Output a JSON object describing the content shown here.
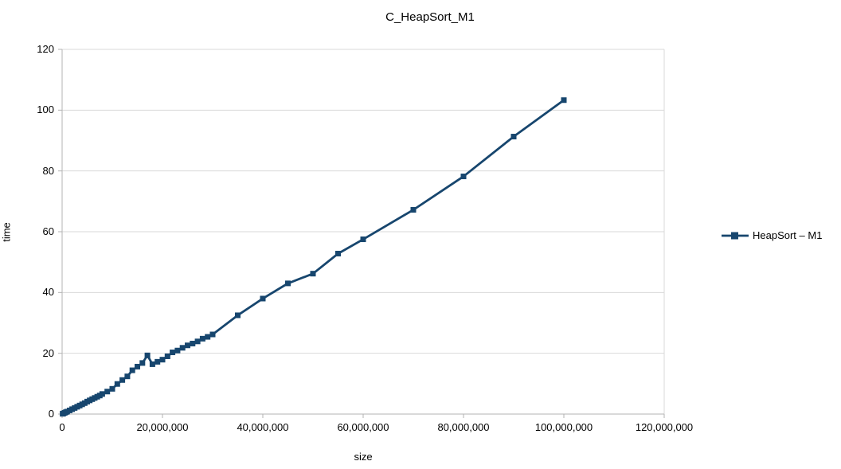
{
  "chart_data": {
    "type": "line",
    "title": "C_HeapSort_M1",
    "xlabel": "size",
    "ylabel": "time",
    "xlim": [
      0,
      120000000
    ],
    "ylim": [
      0,
      120
    ],
    "x_ticks": [
      0,
      20000000,
      40000000,
      60000000,
      80000000,
      100000000,
      120000000
    ],
    "x_tick_labels": [
      "0",
      "20,000,000",
      "40,000,000",
      "60,000,000",
      "80,000,000",
      "100,000,000",
      "120,000,000"
    ],
    "y_ticks": [
      0,
      20,
      40,
      60,
      80,
      100,
      120
    ],
    "y_tick_labels": [
      "0",
      "20",
      "40",
      "60",
      "80",
      "100",
      "120"
    ],
    "grid": "horizontal",
    "legend_position": "right",
    "series": [
      {
        "name": "HeapSort – M1",
        "color": "#17466E",
        "marker": "square",
        "x": [
          100000,
          250000,
          500000,
          750000,
          1000000,
          1500000,
          2000000,
          2500000,
          3000000,
          3500000,
          4000000,
          4500000,
          5000000,
          5500000,
          6000000,
          6500000,
          7000000,
          7500000,
          8000000,
          9000000,
          10000000,
          11000000,
          12000000,
          13000000,
          14000000,
          15000000,
          16000000,
          17000000,
          18000000,
          19000000,
          20000000,
          21000000,
          22000000,
          23000000,
          24000000,
          25000000,
          26000000,
          27000000,
          28000000,
          29000000,
          30000000,
          35000000,
          40000000,
          45000000,
          50000000,
          55000000,
          60000000,
          70000000,
          80000000,
          90000000,
          100000000
        ],
        "y": [
          0.1,
          0.2,
          0.4,
          0.6,
          0.8,
          1.2,
          1.6,
          2.0,
          2.4,
          2.8,
          3.2,
          3.6,
          4.1,
          4.5,
          4.9,
          5.3,
          5.7,
          6.1,
          6.6,
          7.4,
          8.3,
          9.9,
          11.2,
          12.4,
          14.4,
          15.6,
          16.8,
          19.3,
          16.4,
          17.2,
          17.9,
          19.0,
          20.3,
          20.9,
          21.8,
          22.6,
          23.2,
          23.9,
          24.8,
          25.4,
          26.2,
          32.5,
          38.0,
          43.0,
          46.2,
          52.8,
          57.5,
          67.2,
          78.2,
          91.3,
          103.3
        ]
      }
    ]
  },
  "legend": {
    "label": "HeapSort – M1"
  },
  "colors": {
    "series": "#17466E",
    "grid": "#d9d9d9",
    "axis": "#b3b3b3",
    "text": "#000000",
    "background": "#ffffff"
  }
}
